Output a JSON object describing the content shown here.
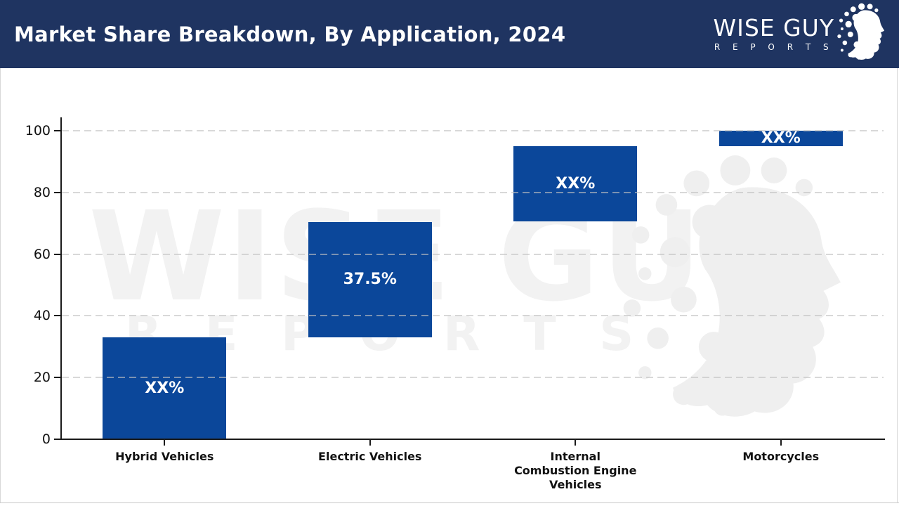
{
  "header": {
    "title": "Market Share Breakdown, By Application, 2024",
    "background_color": "#1f3461"
  },
  "logo": {
    "wordmark": "WISE GUY",
    "subtext": "R E P O R T S",
    "head_icon": "dotted-head-profile"
  },
  "watermark": {
    "line1": "WISE GUY",
    "line2": "R E P O R T S",
    "head_icon": "dotted-head-profile",
    "color": "#f2f2f2"
  },
  "chart_data": {
    "type": "bar",
    "subtype": "waterfall",
    "title": "Market Share Breakdown, By Application, 2024",
    "categories": [
      "Hybrid Vehicles",
      "Electric Vehicles",
      "Internal Combustion Engine Vehicles",
      "Motorcycles"
    ],
    "category_lines": [
      [
        "Hybrid Vehicles"
      ],
      [
        "Electric Vehicles"
      ],
      [
        "Internal",
        "Combustion Engine",
        "Vehicles"
      ],
      [
        "Motorcycles"
      ]
    ],
    "series": [
      {
        "name": "Market Share (%)",
        "segments": [
          {
            "category": "Hybrid Vehicles",
            "start": 0,
            "end": 33,
            "label": "XX%"
          },
          {
            "category": "Electric Vehicles",
            "start": 33,
            "end": 70.5,
            "label": "37.5%"
          },
          {
            "category": "Internal Combustion Engine Vehicles",
            "start": 70.5,
            "end": 95,
            "label": "XX%"
          },
          {
            "category": "Motorcycles",
            "start": 95,
            "end": 100,
            "label": "XX%"
          }
        ]
      }
    ],
    "yticks": [
      0,
      20,
      40,
      60,
      80,
      100
    ],
    "ylim": [
      0,
      105
    ],
    "xlabel": "",
    "ylabel": "",
    "grid": "horizontal dashed",
    "legend": "none",
    "bar_color": "#0b479a",
    "bar_label_color": "#ffffff",
    "axis_color": "#1a1a1a"
  }
}
